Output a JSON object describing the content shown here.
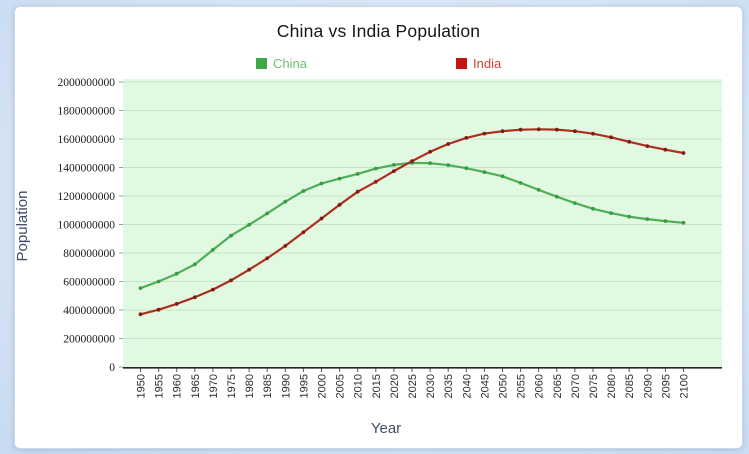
{
  "title": "China vs India Population",
  "axes": {
    "x_title": "Year",
    "y_title": "Population"
  },
  "colors": {
    "page_background": "#d9e7f7",
    "card_background": "#ffffff",
    "plot_background": "#e2f9e1",
    "gridline": "#c6e2c6",
    "axis_line": "#23272b",
    "y_tick_text": "#1b1b1b",
    "x_tick_text": "#2e2e2e",
    "axis_title_text": "#3f4d66"
  },
  "chart_data": {
    "type": "line",
    "title": "China vs India Population",
    "xlabel": "Year",
    "ylabel": "Population",
    "ylim": [
      0,
      2000000000
    ],
    "ytick_step": 200000000,
    "grid": true,
    "legend_position": "top",
    "plot_bg": "#e2f9e1",
    "grid_color": "#c6e2c6",
    "y_ticks": [
      "0",
      "200000000",
      "400000000",
      "600000000",
      "800000000",
      "1000000000",
      "1200000000",
      "1400000000",
      "1600000000",
      "1800000000",
      "2000000000"
    ],
    "x": [
      1950,
      1955,
      1960,
      1965,
      1970,
      1975,
      1980,
      1985,
      1990,
      1995,
      2000,
      2005,
      2010,
      2015,
      2020,
      2025,
      2030,
      2035,
      2040,
      2045,
      2050,
      2055,
      2060,
      2065,
      2070,
      2075,
      2080,
      2085,
      2090,
      2095,
      2100
    ],
    "series": [
      {
        "name": "China",
        "line_color": "#4fae57",
        "marker_color": "#3a9b46",
        "legend_swatch_color": "#3da74a",
        "legend_text_color": "#6fbf73",
        "values": [
          554000000,
          600000000,
          655000000,
          720000000,
          822000000,
          922000000,
          998000000,
          1078000000,
          1160000000,
          1235000000,
          1288000000,
          1322000000,
          1355000000,
          1392000000,
          1418000000,
          1432000000,
          1430000000,
          1417000000,
          1395000000,
          1368000000,
          1338000000,
          1292000000,
          1243000000,
          1195000000,
          1150000000,
          1110000000,
          1080000000,
          1055000000,
          1038000000,
          1024000000,
          1012000000
        ]
      },
      {
        "name": "India",
        "line_color": "#ad2e1f",
        "marker_color": "#7e1d12",
        "legend_swatch_color": "#c51414",
        "legend_text_color": "#d64535",
        "values": [
          370000000,
          402000000,
          443000000,
          489000000,
          543000000,
          608000000,
          683000000,
          763000000,
          850000000,
          945000000,
          1042000000,
          1138000000,
          1230000000,
          1300000000,
          1375000000,
          1445000000,
          1510000000,
          1565000000,
          1608000000,
          1638000000,
          1655000000,
          1665000000,
          1668000000,
          1666000000,
          1655000000,
          1637000000,
          1612000000,
          1580000000,
          1550000000,
          1525000000,
          1502000000
        ]
      }
    ]
  }
}
